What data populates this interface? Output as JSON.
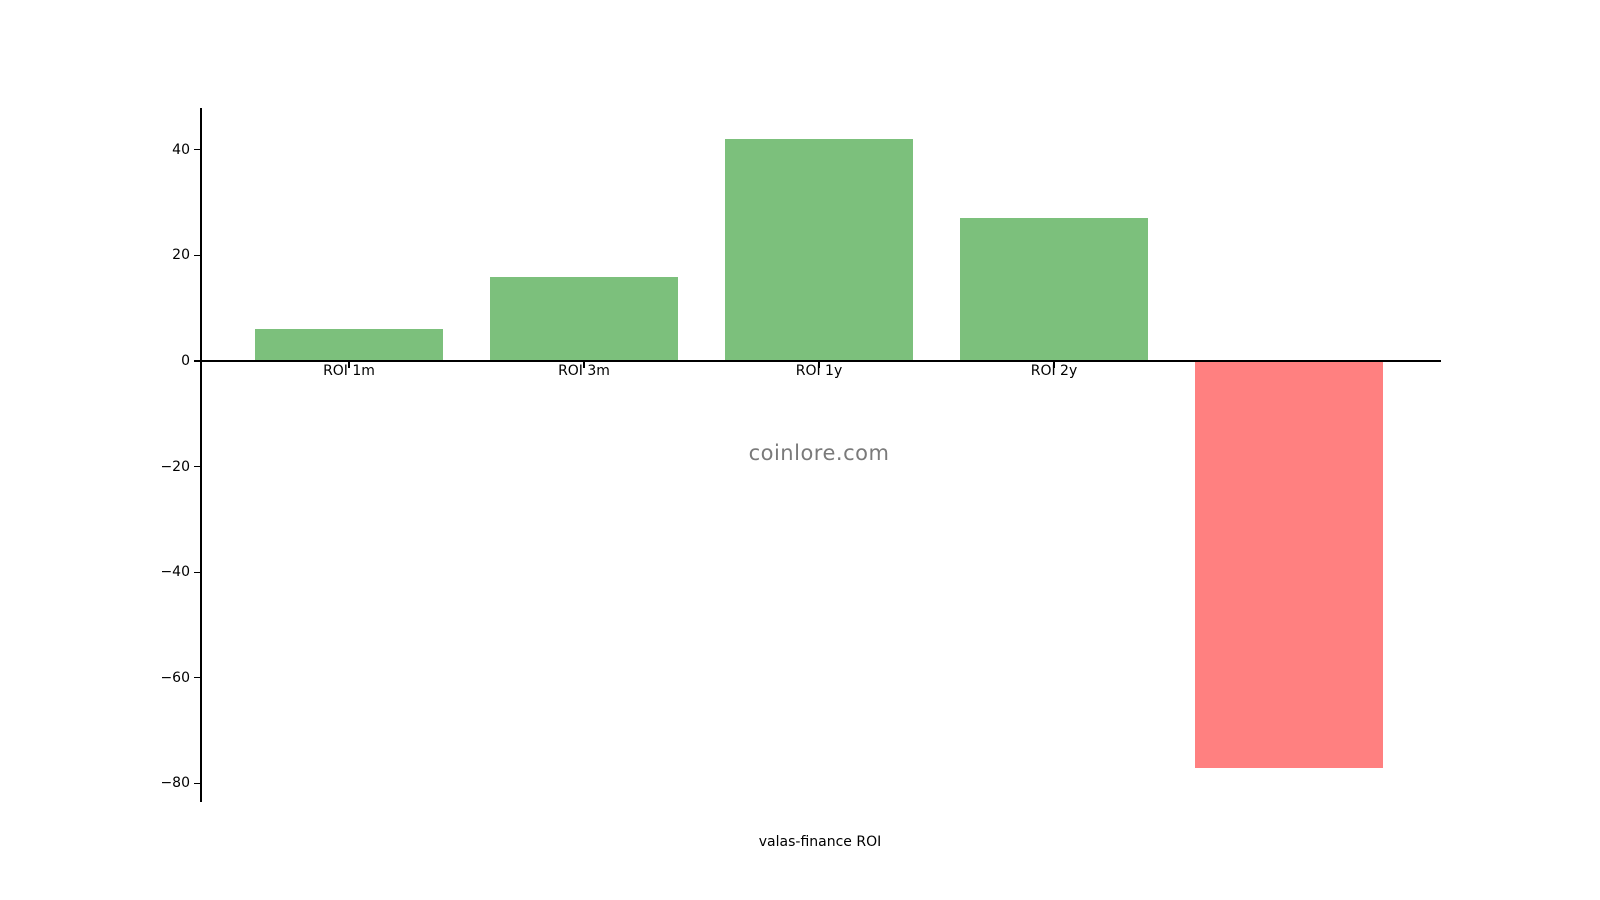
{
  "chart_data": {
    "type": "bar",
    "title": "valas-finance ROI",
    "watermark": "coinlore.com",
    "categories": [
      "ROI 1m",
      "ROI 3m",
      "ROI 1y",
      "ROI 2y",
      ""
    ],
    "values": [
      6,
      16,
      42,
      27,
      -77
    ],
    "series": [
      {
        "name": "ROI",
        "values": [
          6,
          16,
          42,
          27,
          -77
        ]
      }
    ],
    "xlabel": "",
    "ylabel": "",
    "ylim": [
      -83,
      48
    ],
    "grid": false,
    "legend_position": "none",
    "y_ticks": [
      {
        "label": "40",
        "value": 40
      },
      {
        "label": "20",
        "value": 20
      },
      {
        "label": "0",
        "value": 0
      },
      {
        "label": "−20",
        "value": -20
      },
      {
        "label": "−40",
        "value": -40
      },
      {
        "label": "−60",
        "value": -60
      },
      {
        "label": "−80",
        "value": -80
      }
    ],
    "colors": {
      "positive_bar": "#7cc07c",
      "negative_bar": "#ff8080",
      "axis": "#000000",
      "tick_text": "#000000",
      "watermark_text": "#7a7a7a"
    }
  }
}
